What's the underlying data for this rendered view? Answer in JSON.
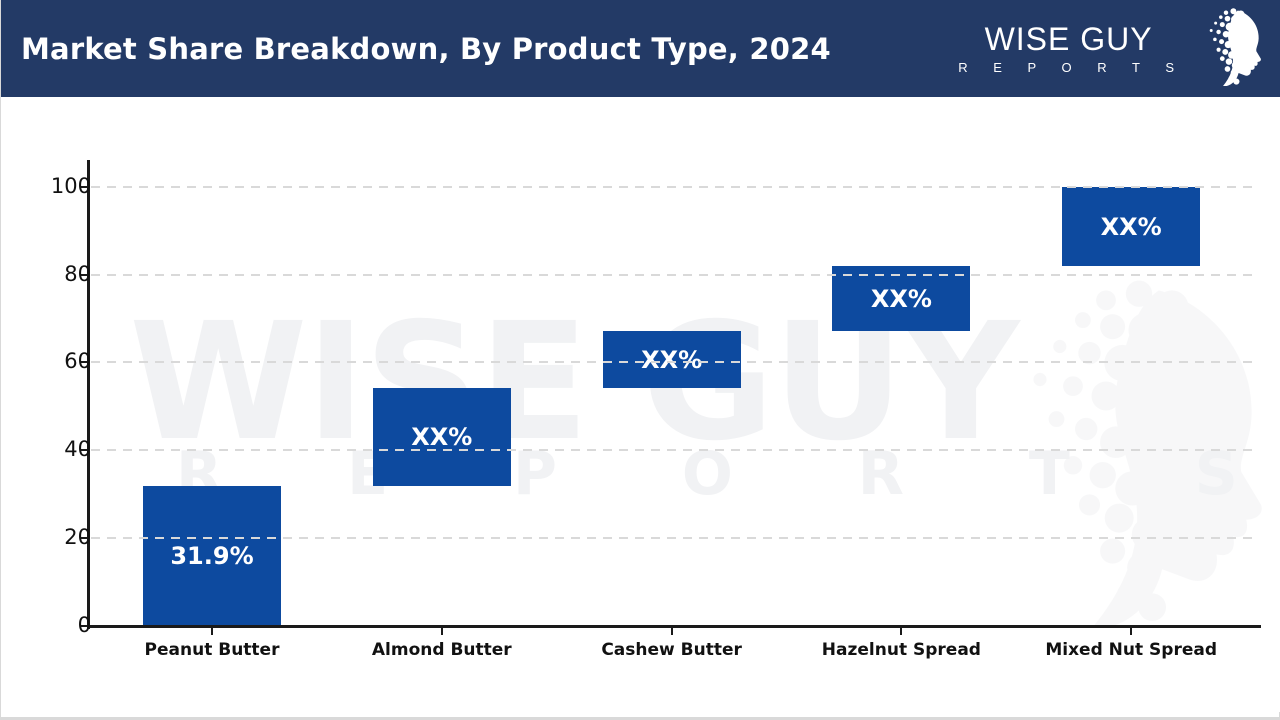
{
  "header": {
    "title": "Market Share Breakdown, By Product Type, 2024",
    "logo": {
      "line1": "WISE GUY",
      "line2": "REPORTS"
    }
  },
  "watermark": {
    "line1": "WISE GUY",
    "line2": "REPORTS"
  },
  "colors": {
    "header_bg": "#233a66",
    "bar": "#0d4a9f",
    "bar_label": "#ffffff",
    "grid": "#d9d9d9",
    "axis": "#1a1a1a",
    "watermark": "#f1f2f4"
  },
  "chart_data": {
    "type": "bar",
    "subtype": "waterfall",
    "title": "Market Share Breakdown, By Product Type, 2024",
    "categories": [
      "Peanut Butter",
      "Almond Butter",
      "Cashew Butter",
      "Hazelnut Spread",
      "Mixed Nut Spread"
    ],
    "segments": [
      {
        "category": "Peanut Butter",
        "start": 0,
        "end": 31.9,
        "label": "31.9%"
      },
      {
        "category": "Almond Butter",
        "start": 31.9,
        "end": 54.1,
        "label": "XX%"
      },
      {
        "category": "Cashew Butter",
        "start": 54.1,
        "end": 67.2,
        "label": "XX%"
      },
      {
        "category": "Hazelnut Spread",
        "start": 67.2,
        "end": 81.9,
        "label": "XX%"
      },
      {
        "category": "Mixed Nut Spread",
        "start": 81.9,
        "end": 100,
        "label": "XX%"
      }
    ],
    "yticks": [
      0,
      20,
      40,
      60,
      80,
      100
    ],
    "ylim": [
      0,
      100
    ],
    "grid": "dashed-horizontal",
    "legend": "none",
    "xlabel": "",
    "ylabel": ""
  }
}
